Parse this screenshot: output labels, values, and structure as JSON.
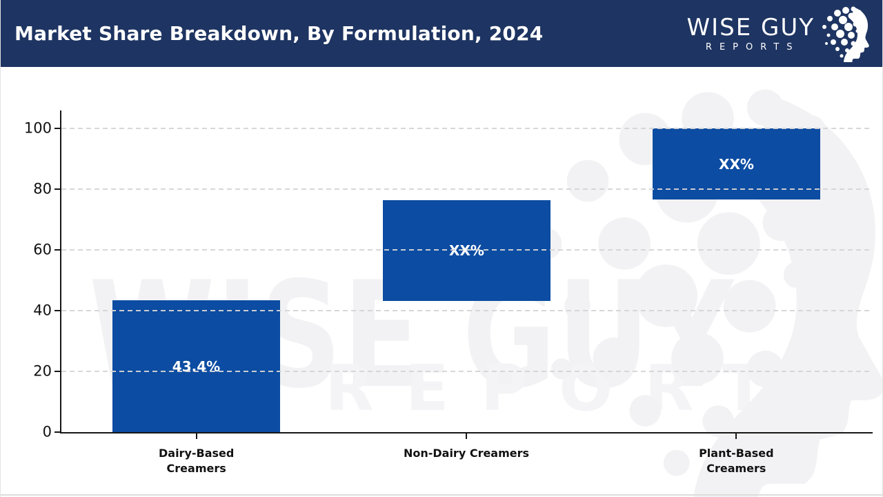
{
  "header": {
    "title": "Market Share Breakdown, By Formulation, 2024",
    "logo": {
      "line1": "WISE GUY",
      "line2": "REPORTS"
    }
  },
  "watermark": {
    "line1": "WISE GUY",
    "line2": "REPORTS"
  },
  "chart_data": {
    "type": "bar",
    "subtype": "waterfall",
    "title": "Market Share Breakdown, By Formulation, 2024",
    "categories": [
      [
        "Dairy-Based",
        "Creamers"
      ],
      [
        "Non-Dairy Creamers"
      ],
      [
        "Plant-Based",
        "Creamers"
      ]
    ],
    "segments": [
      {
        "start": 0,
        "end": 43.4,
        "label": "43.4%"
      },
      {
        "start": 43.4,
        "end": 76.5,
        "label": "XX%"
      },
      {
        "start": 76.5,
        "end": 100,
        "label": "XX%"
      }
    ],
    "yticks": [
      0,
      20,
      40,
      60,
      80,
      100
    ],
    "ylim": [
      0,
      106
    ],
    "xlabel": "",
    "ylabel": "",
    "grid": "horizontal-dashed",
    "legend": "none",
    "bar_color": "#0c4ca2",
    "bar_label_color": "#ffffff",
    "axis_color": "#161616",
    "grid_color": "#d5d5d5",
    "header_bg": "#1e3462",
    "watermark_color": "#f2f2f4"
  }
}
